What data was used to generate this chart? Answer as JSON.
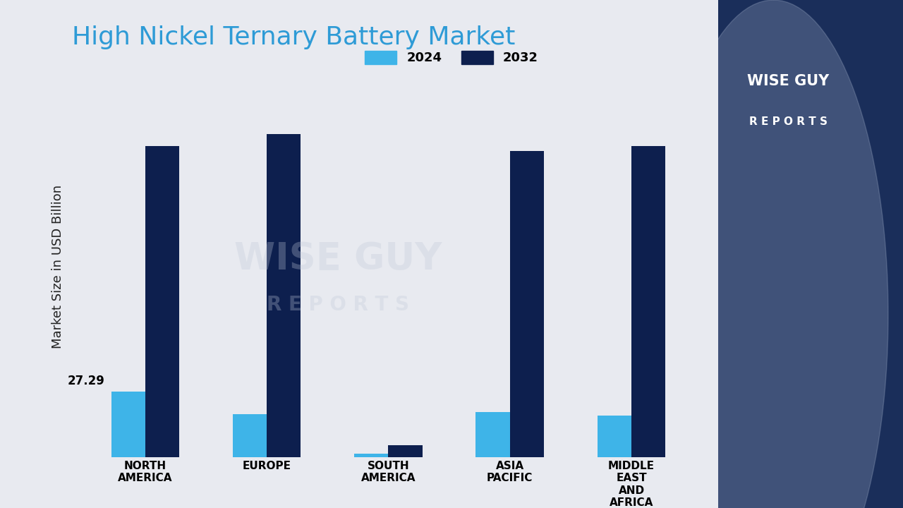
{
  "title": "High Nickel Ternary Battery Market",
  "ylabel": "Market Size in USD Billion",
  "categories": [
    "NORTH\nAMERICA",
    "EUROPE",
    "SOUTH\nAMERICA",
    "ASIA\nPACIFIC",
    "MIDDLE\nEAST\nAND\nAFRICA"
  ],
  "values_2024": [
    27.29,
    18.0,
    1.5,
    19.0,
    17.5
  ],
  "values_2032": [
    130.0,
    135.0,
    5.0,
    128.0,
    130.0
  ],
  "color_2024": "#3EB4E8",
  "color_2032": "#0D1F4E",
  "annotation_label": "27.29",
  "annotation_region": 0,
  "background_color": "#E8EAF0",
  "title_color": "#2E9BD6",
  "ylabel_color": "#222222",
  "bar_width": 0.28,
  "legend_labels": [
    "2024",
    "2032"
  ],
  "title_fontsize": 26,
  "ylabel_fontsize": 13,
  "xtick_fontsize": 11,
  "annotation_fontsize": 12,
  "dark_navy_panel_color": "#1A2E5A",
  "watermark_color": "#C0C8D8",
  "watermark_alpha": 0.3
}
